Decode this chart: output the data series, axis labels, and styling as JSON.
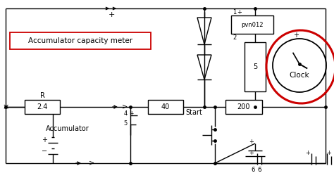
{
  "bg_color": "#ffffff",
  "line_color": "#000000",
  "red_color": "#cc0000",
  "red_box_color": "#cc0000",
  "label_capacity": "Accumulator capacity meter",
  "label_R": "R",
  "label_2_4": "2.4",
  "label_40": "40",
  "label_200": "200",
  "label_pvn012": "pvn012",
  "label_accumulator": "Accumulator",
  "label_start": "Start",
  "label_clock": "Clock",
  "label_5box": "5",
  "figsize": [
    4.74,
    2.63
  ],
  "dpi": 100
}
